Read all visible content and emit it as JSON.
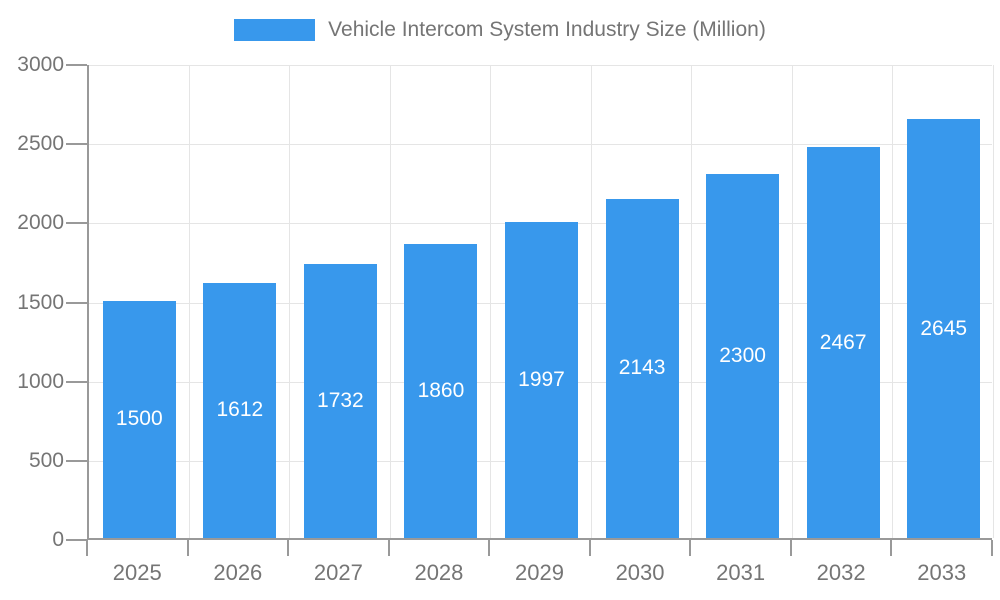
{
  "chart_data": {
    "type": "bar",
    "legend": "Vehicle Intercom System Industry Size (Million)",
    "categories": [
      "2025",
      "2026",
      "2027",
      "2028",
      "2029",
      "2030",
      "2031",
      "2032",
      "2033"
    ],
    "values": [
      1500,
      1612,
      1732,
      1860,
      1997,
      2143,
      2300,
      2467,
      2645
    ],
    "title": "",
    "xlabel": "",
    "ylabel": "",
    "ylim": [
      0,
      3000
    ],
    "ytick_step": 500,
    "ytick_labels": [
      "0",
      "500",
      "1000",
      "1500",
      "2000",
      "2500",
      "3000"
    ],
    "grid": true,
    "legend_position": "top",
    "bar_value_labels_inside": true,
    "colors": {
      "bar": "#3898ec",
      "bar_label": "#ffffff",
      "axis": "#999999",
      "gridline": "#e5e5e5",
      "tick_label": "#757575",
      "legend_text": "#757575",
      "background": "#ffffff"
    }
  }
}
